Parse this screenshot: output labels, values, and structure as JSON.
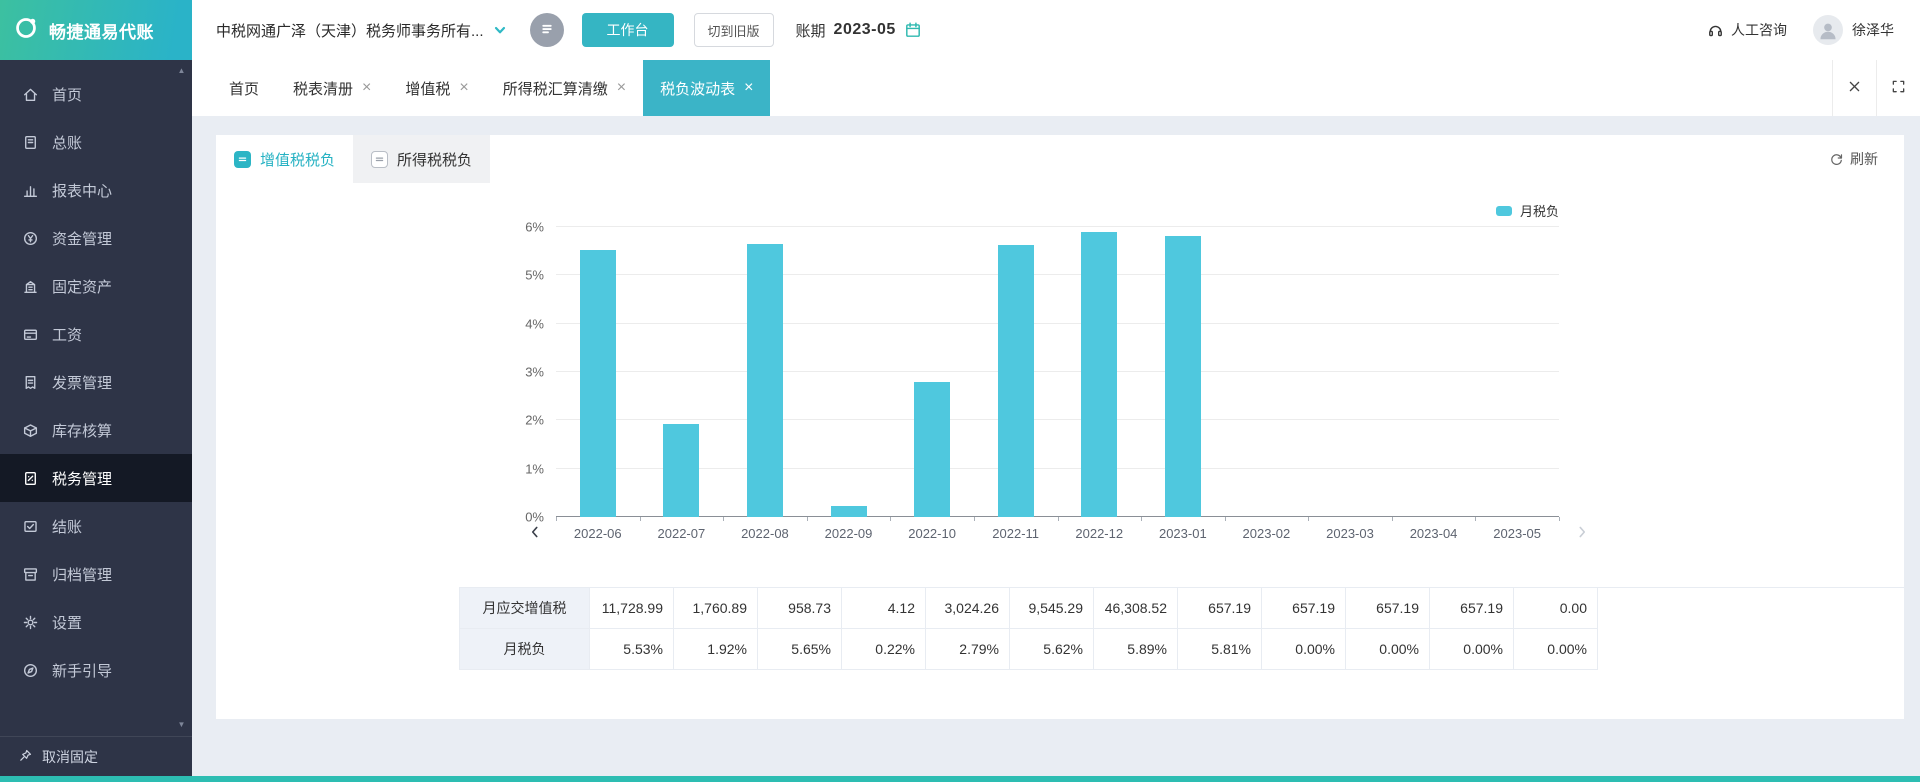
{
  "brand": {
    "name": "畅捷通易代账"
  },
  "colors": {
    "accent": "#35b5c3",
    "tab_active": "#3bb4c7",
    "bar": "#4fc8de",
    "sidebar_bg": "#2e3447",
    "sidebar_active": "#141925",
    "bottom_strip": "#2dbdb2"
  },
  "header": {
    "company": "中税网通广泽（天津）税务师事务所有...",
    "workbench": "工作台",
    "switch_old": "切到旧版",
    "period_label": "账期",
    "period_value": "2023-05",
    "consult": "人工咨询",
    "username": "徐泽华"
  },
  "tabbar": {
    "tabs": [
      {
        "id": "home",
        "label": "首页",
        "closable": false,
        "active": false
      },
      {
        "id": "tax-form-register",
        "label": "税表清册",
        "closable": true,
        "active": false
      },
      {
        "id": "vat",
        "label": "增值税",
        "closable": true,
        "active": false
      },
      {
        "id": "income-tax-settlement",
        "label": "所得税汇算清缴",
        "closable": true,
        "active": false
      },
      {
        "id": "tax-burden-fluctuation",
        "label": "税负波动表",
        "closable": true,
        "active": true
      }
    ]
  },
  "sidebar": {
    "items": [
      {
        "id": "home",
        "label": "首页",
        "icon": "home-icon",
        "active": false
      },
      {
        "id": "general-ledger",
        "label": "总账",
        "icon": "ledger-icon",
        "active": false
      },
      {
        "id": "report-center",
        "label": "报表中心",
        "icon": "report-icon",
        "active": false
      },
      {
        "id": "fund-management",
        "label": "资金管理",
        "icon": "fund-icon",
        "active": false
      },
      {
        "id": "fixed-assets",
        "label": "固定资产",
        "icon": "asset-icon",
        "active": false
      },
      {
        "id": "salary",
        "label": "工资",
        "icon": "salary-icon",
        "active": false
      },
      {
        "id": "invoice-management",
        "label": "发票管理",
        "icon": "invoice-icon",
        "active": false
      },
      {
        "id": "inventory-accounting",
        "label": "库存核算",
        "icon": "inventory-icon",
        "active": false
      },
      {
        "id": "tax-management",
        "label": "税务管理",
        "icon": "tax-icon",
        "active": true
      },
      {
        "id": "closing",
        "label": "结账",
        "icon": "closing-icon",
        "active": false
      },
      {
        "id": "archive-management",
        "label": "归档管理",
        "icon": "archive-icon",
        "active": false
      },
      {
        "id": "settings",
        "label": "设置",
        "icon": "settings-icon",
        "active": false
      },
      {
        "id": "beginner-guide",
        "label": "新手引导",
        "icon": "guide-icon",
        "active": false
      }
    ],
    "unpin": "取消固定"
  },
  "content": {
    "subtabs": [
      {
        "label": "增值税税负",
        "active": true
      },
      {
        "label": "所得税税负",
        "active": false
      }
    ],
    "refresh": "刷新"
  },
  "chart_data": {
    "type": "bar",
    "title": "",
    "categories": [
      "2022-06",
      "2022-07",
      "2022-08",
      "2022-09",
      "2022-10",
      "2022-11",
      "2022-12",
      "2023-01",
      "2023-02",
      "2023-03",
      "2023-04",
      "2023-05"
    ],
    "series": [
      {
        "name": "月税负",
        "values": [
          5.53,
          1.92,
          5.65,
          0.22,
          2.79,
          5.62,
          5.89,
          5.81,
          0,
          0,
          0,
          0
        ]
      }
    ],
    "xlabel": "",
    "ylabel": "",
    "ylim": [
      0,
      6
    ],
    "y_ticks": [
      "0%",
      "1%",
      "2%",
      "3%",
      "4%",
      "5%",
      "6%"
    ],
    "grid": true,
    "legend": [
      "月税负"
    ],
    "legend_position": "top-right",
    "bar_color": "#4fc8de"
  },
  "table": {
    "rows": [
      {
        "label": "月应交增值税",
        "values": [
          "11,728.99",
          "1,760.89",
          "958.73",
          "4.12",
          "3,024.26",
          "9,545.29",
          "46,308.52",
          "657.19",
          "657.19",
          "657.19",
          "657.19",
          "0.00"
        ]
      },
      {
        "label": "月税负",
        "values": [
          "5.53%",
          "1.92%",
          "5.65%",
          "0.22%",
          "2.79%",
          "5.62%",
          "5.89%",
          "5.81%",
          "0.00%",
          "0.00%",
          "0.00%",
          "0.00%"
        ]
      }
    ]
  }
}
